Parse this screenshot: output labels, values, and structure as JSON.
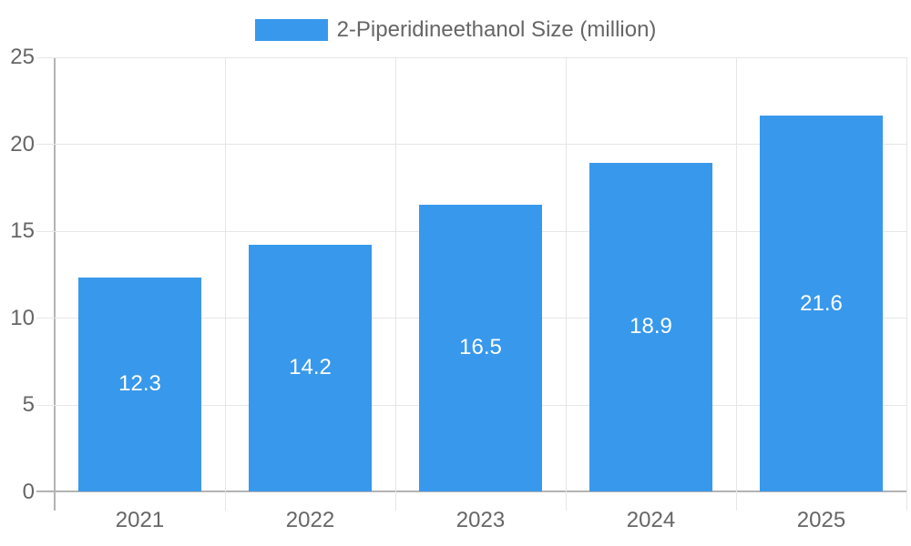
{
  "chart_data": {
    "type": "bar",
    "legend": "2-Piperidineethanol Size (million)",
    "legend_position": "top",
    "categories": [
      "2021",
      "2022",
      "2023",
      "2024",
      "2025"
    ],
    "values": [
      12.3,
      14.2,
      16.5,
      18.9,
      21.6
    ],
    "value_labels": [
      "12.3",
      "14.2",
      "16.5",
      "18.9",
      "21.6"
    ],
    "title": "",
    "xlabel": "",
    "ylabel": "",
    "ylim": [
      0,
      25
    ],
    "yticks": [
      0,
      5,
      10,
      15,
      20,
      25
    ],
    "grid": true,
    "bar_label_position": "inside-center"
  },
  "colors": {
    "bar": "#3898EC",
    "grid": "#e6e6e6",
    "axis": "#b3b3b3",
    "tick_text": "#666666",
    "legend_text": "#666666",
    "value_text": "#ffffff",
    "background": "#ffffff"
  }
}
